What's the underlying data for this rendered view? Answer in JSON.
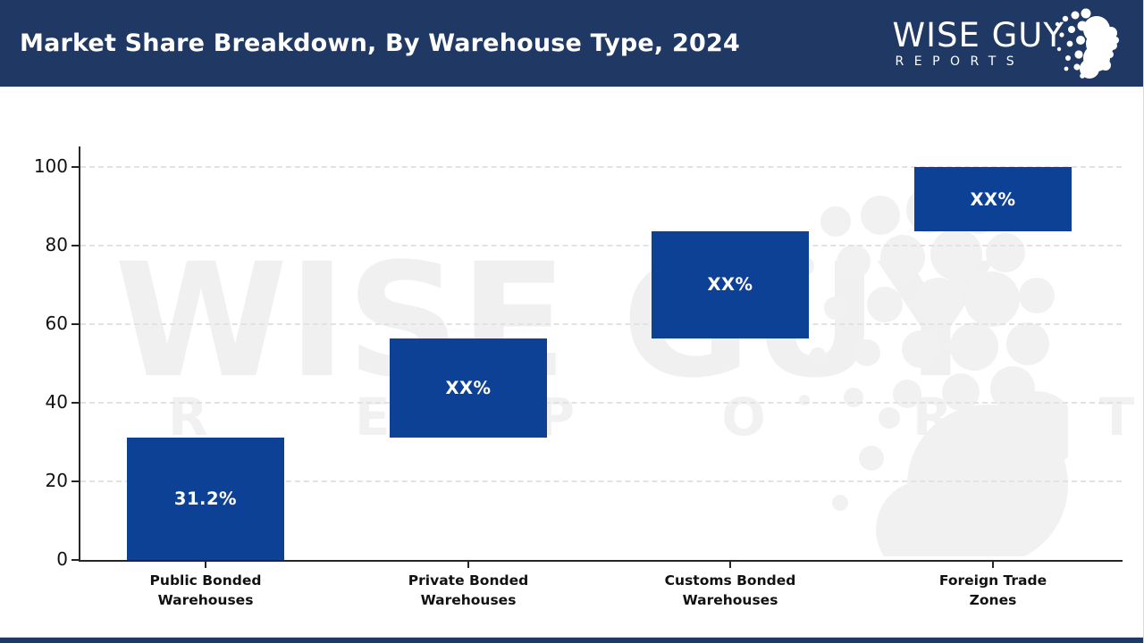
{
  "header": {
    "title": "Market Share Breakdown, By Warehouse Type, 2024",
    "brand_line1": "WISE GUY",
    "brand_line2": "REPORTS",
    "bg_color": "#1f3864"
  },
  "watermark": {
    "line1": "WISE GUY",
    "line2": "R E P O R T S"
  },
  "chart_data": {
    "type": "bar",
    "subtype": "waterfall",
    "title": "Market Share Breakdown, By Warehouse Type, 2024",
    "categories": [
      "Public Bonded\nWarehouses",
      "Private Bonded\nWarehouses",
      "Customs Bonded\nWarehouses",
      "Foreign Trade\nZones"
    ],
    "bars": [
      {
        "category": "Public Bonded\nWarehouses",
        "label": "31.2%",
        "start": 0,
        "end": 31.2
      },
      {
        "category": "Private Bonded\nWarehouses",
        "label": "XX%",
        "start": 31.2,
        "end": 56.4
      },
      {
        "category": "Customs Bonded\nWarehouses",
        "label": "XX%",
        "start": 56.4,
        "end": 83.6
      },
      {
        "category": "Foreign Trade\nZones",
        "label": "XX%",
        "start": 83.6,
        "end": 100
      }
    ],
    "yticks": [
      0,
      20,
      40,
      60,
      80,
      100
    ],
    "ylim": [
      0,
      105
    ],
    "xlabel": "",
    "ylabel": "",
    "grid": "horizontal-dashed",
    "legend": "none",
    "bar_color": "#0d4196",
    "bar_label_color": "#ffffff",
    "axis_color": "#262626"
  }
}
